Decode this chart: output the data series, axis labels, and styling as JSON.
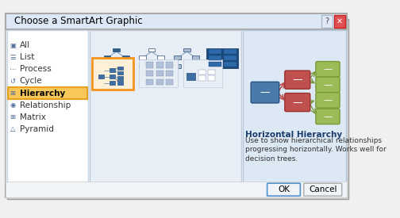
{
  "title": "Choose a SmartArt Graphic",
  "bg_color": "#f0f0f0",
  "dialog_bg": "#f5f5f5",
  "left_panel_bg": "#ffffff",
  "center_panel_bg": "#e8eef5",
  "right_panel_bg": "#dce8f5",
  "categories": [
    "All",
    "List",
    "Process",
    "Cycle",
    "Hierarchy",
    "Relationship",
    "Matrix",
    "Pyramid"
  ],
  "selected_category": "Hierarchy",
  "selected_category_idx": 4,
  "hierarchy_title": "Horizontal Hierarchy",
  "hierarchy_desc": "Use to show hierarchical relationships\nprogressing horizontally. Works well for\ndecision trees.",
  "ok_btn": "OK",
  "cancel_btn": "Cancel",
  "blue_dark": "#2e5f8a",
  "blue_mid": "#4a7aaa",
  "blue_light": "#8aafd4",
  "blue_box": "#3d6fa3",
  "red_box": "#c0504d",
  "green_box": "#9bbb59",
  "orange_selected": "#f7941d",
  "selected_bg": "#fce8c0"
}
